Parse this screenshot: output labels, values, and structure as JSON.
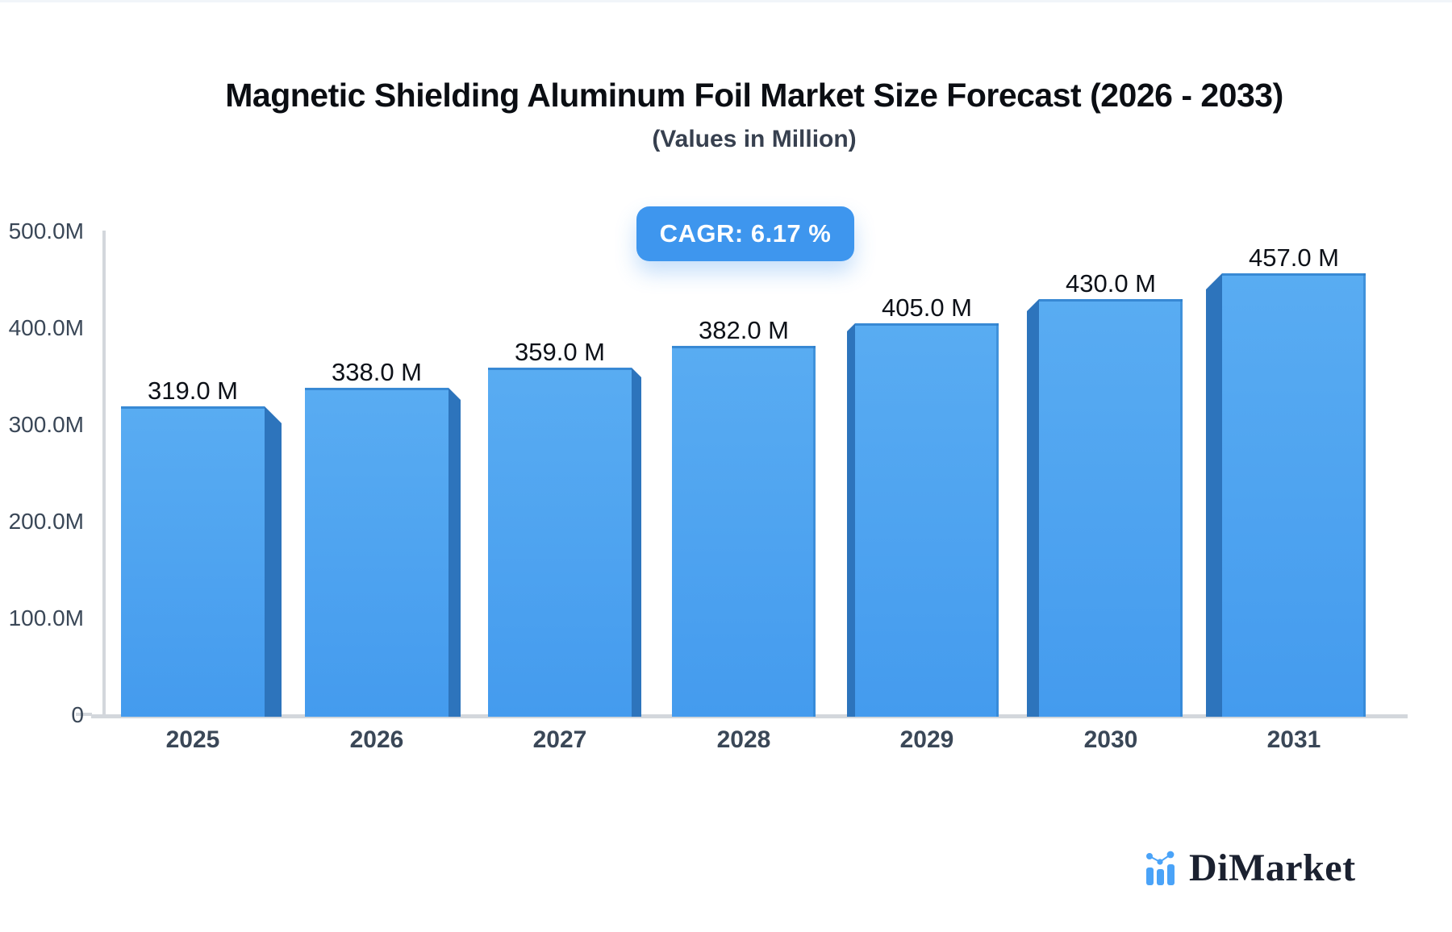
{
  "header": {
    "title": "Magnetic Shielding Aluminum Foil Market Size Forecast (2026 - 2033)",
    "subtitle": "(Values in Million)"
  },
  "badge": {
    "label": "CAGR: 6.17 %"
  },
  "brand": {
    "wordmark": "DiMarket",
    "icon": "bar-chart-logo-icon"
  },
  "colors": {
    "bar_front_top": "#59acf2",
    "bar_front_bottom": "#449bee",
    "bar_side": "#2d74bc",
    "bar_top_edge": "#2e7dc9",
    "badge_bg": "#3e96ee",
    "badge_text": "#ffffff",
    "axis_line": "#d3d7dc",
    "axis_label_text": "#3a4757",
    "value_label_text": "#0d1118",
    "title_text": "#0b0e13",
    "subtitle_text": "#37404f",
    "logo_blue": "#4aa3f8",
    "logo_text": "#1b2130"
  },
  "chart_data": {
    "type": "bar",
    "title": "Magnetic Shielding Aluminum Foil Market Size Forecast (2026 - 2033)",
    "subtitle": "(Values in Million)",
    "unit": "Million",
    "categories": [
      "2025",
      "2026",
      "2027",
      "2028",
      "2029",
      "2030",
      "2031"
    ],
    "values": [
      319,
      338,
      359,
      382,
      405,
      430,
      457
    ],
    "value_labels": [
      "319.0 M",
      "338.0 M",
      "359.0 M",
      "382.0 M",
      "405.0 M",
      "430.0 M",
      "457.0 M"
    ],
    "y_tick_labels": [
      "500.0M",
      "400.0M",
      "300.0M",
      "200.0M",
      "100.0M",
      "0"
    ],
    "ylim": [
      0,
      500
    ],
    "xlabel": "",
    "ylabel": "",
    "grid": false,
    "legend": false,
    "annotations": [
      "CAGR: 6.17 %"
    ]
  }
}
